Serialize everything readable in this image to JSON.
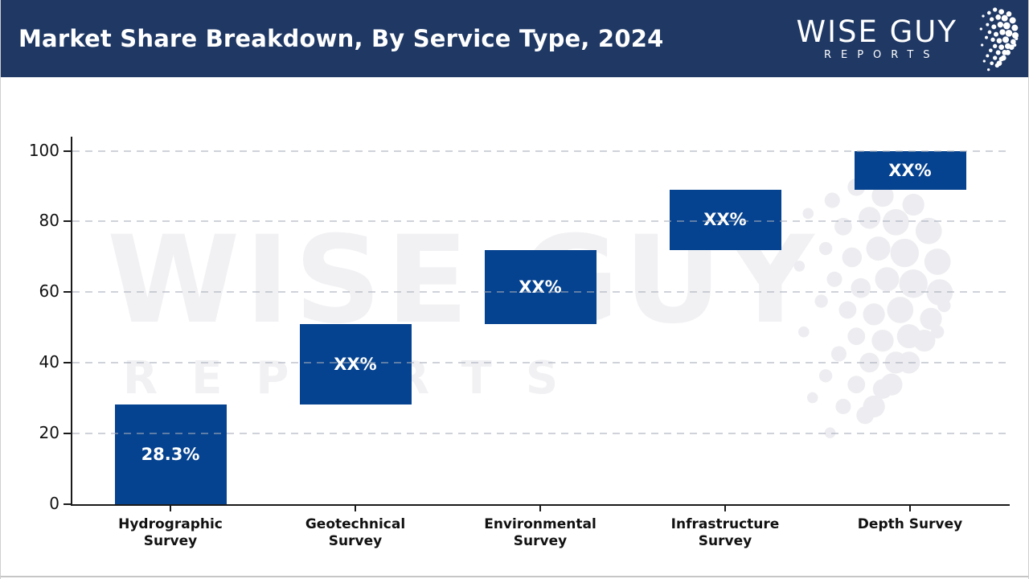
{
  "header": {
    "title": "Market Share Breakdown, By Service Type, 2024",
    "bg_color": "#1f3864",
    "logo": {
      "word": "WISE GUY",
      "sub": "REPORTS"
    }
  },
  "watermark": {
    "line1": "WISE GUY",
    "line2": "REPORTS"
  },
  "chart_data": {
    "type": "bar",
    "subtype": "waterfall",
    "title": "Market Share Breakdown, By Service Type, 2024",
    "xlabel": "",
    "ylabel": "",
    "ylim": [
      0,
      104
    ],
    "yticks": [
      0,
      20,
      40,
      60,
      80,
      100
    ],
    "grid": "dashed-horizontal",
    "legend": null,
    "bar_color": "#05428f",
    "label_color": "#ffffff",
    "categories": [
      "Hydrographic\nSurvey",
      "Geotechnical\nSurvey",
      "Environmental\nSurvey",
      "Infrastructure\nSurvey",
      "Depth Survey"
    ],
    "segments": [
      {
        "category": "Hydrographic\nSurvey",
        "start": 0,
        "end": 28.3,
        "value": 28.3,
        "label": "28.3%"
      },
      {
        "category": "Geotechnical\nSurvey",
        "start": 28.3,
        "end": 51,
        "value": 22.7,
        "label": "XX%"
      },
      {
        "category": "Environmental\nSurvey",
        "start": 51,
        "end": 72,
        "value": 21,
        "label": "XX%"
      },
      {
        "category": "Infrastructure\nSurvey",
        "start": 72,
        "end": 89,
        "value": 17,
        "label": "XX%"
      },
      {
        "category": "Depth Survey",
        "start": 89,
        "end": 100,
        "value": 11,
        "label": "XX%"
      }
    ]
  }
}
